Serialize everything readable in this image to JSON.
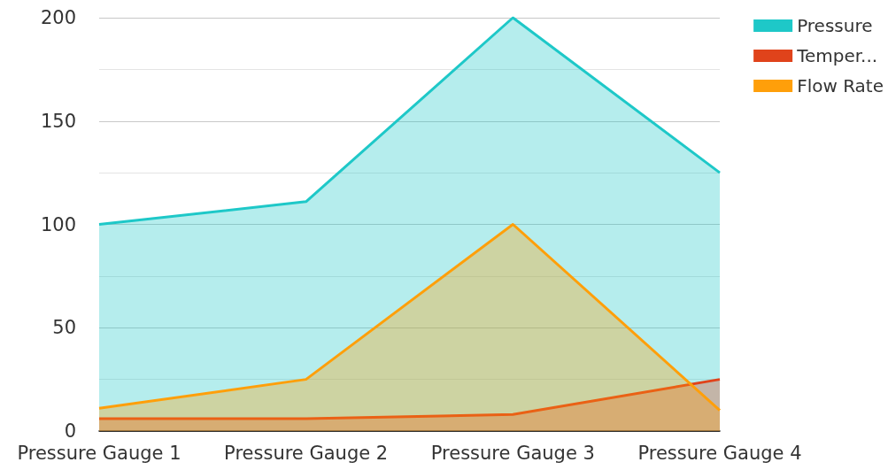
{
  "chart_data": {
    "type": "area",
    "categories": [
      "Pressure Gauge 1",
      "Pressure Gauge 2",
      "Pressure Gauge 3",
      "Pressure Gauge 4"
    ],
    "series": [
      {
        "name": "Pressure",
        "color": "#1ec8c8",
        "values": [
          100,
          111,
          200,
          125
        ]
      },
      {
        "name": "Temper...",
        "color": "#e0431b",
        "values": [
          6,
          6,
          8,
          25
        ]
      },
      {
        "name": "Flow Rate",
        "color": "#ff9f0a",
        "values": [
          11,
          25,
          100,
          10
        ]
      }
    ],
    "ylim": [
      0,
      200
    ],
    "yticks": [
      0,
      {
        "value": 25,
        "label": null
      },
      50,
      {
        "value": 75,
        "label": null
      },
      100,
      {
        "value": 125,
        "label": null
      },
      150,
      {
        "value": 175,
        "label": null
      },
      200
    ],
    "grid": "y",
    "legend": "top right",
    "marker": "none",
    "line_style": "solid"
  }
}
